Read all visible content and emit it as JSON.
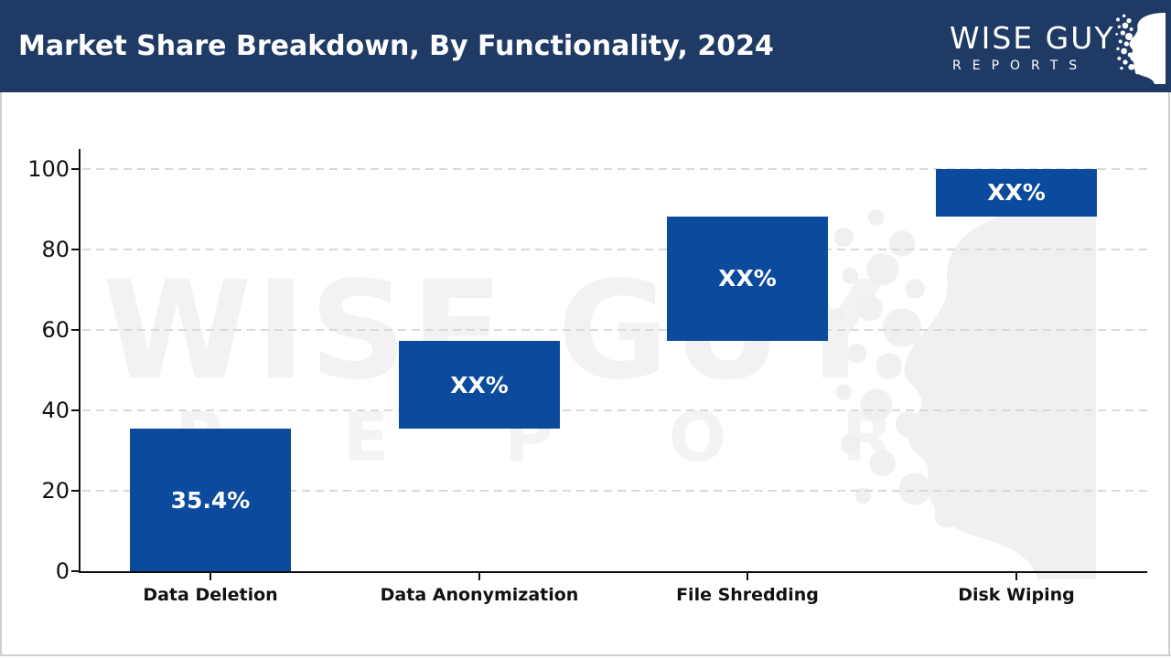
{
  "header": {
    "title": "Market Share Breakdown, By Functionality, 2024",
    "logo": {
      "line1": "WISE GUY",
      "line2": "REPORTS"
    }
  },
  "watermark": {
    "line1": "WISE GUY",
    "line2": "R E P O R T S"
  },
  "colors": {
    "header_bg": "#203a66",
    "bar": "#0b4a9c",
    "grid": "#d9d9d9",
    "axis": "#111111",
    "watermark_text": "#f2f2f2",
    "frame_border": "#cfcfcf",
    "bar_label": "#ffffff"
  },
  "chart_data": {
    "type": "bar",
    "subtype": "floating-waterfall",
    "title": "Market Share Breakdown, By Functionality, 2024",
    "categories": [
      "Data Deletion",
      "Data Anonymization",
      "File Shredding",
      "Disk Wiping"
    ],
    "segments": [
      {
        "category": "Data Deletion",
        "start": 0,
        "end": 35.4,
        "label": "35.4%"
      },
      {
        "category": "Data Anonymization",
        "start": 35.4,
        "end": 57.3,
        "label": "XX%"
      },
      {
        "category": "File Shredding",
        "start": 57.3,
        "end": 88.2,
        "label": "XX%"
      },
      {
        "category": "Disk Wiping",
        "start": 88.2,
        "end": 100,
        "label": "XX%"
      }
    ],
    "yticks": [
      0,
      20,
      40,
      60,
      80,
      100
    ],
    "ylim": [
      0,
      105
    ],
    "xlabel": "",
    "ylabel": "",
    "grid": "horizontal-dashed",
    "legend": "none",
    "bar_color": "#0b4a9c",
    "label_color": "#ffffff"
  }
}
